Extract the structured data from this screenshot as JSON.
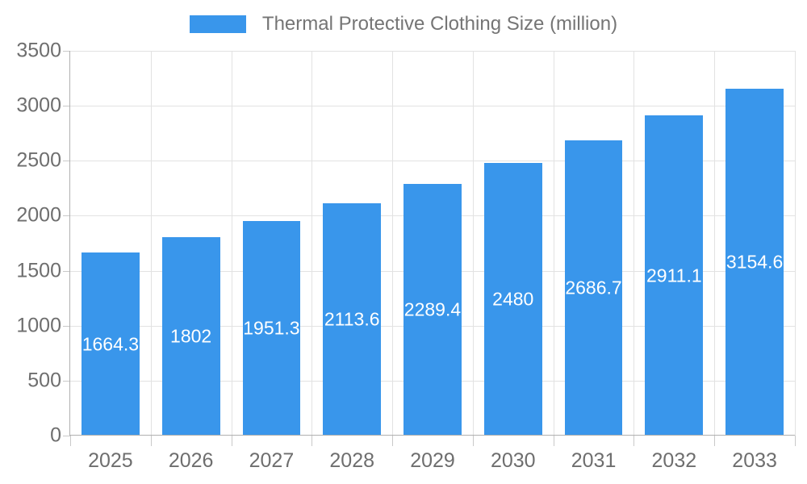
{
  "legend": {
    "label": "Thermal Protective Clothing Size (million)"
  },
  "colors": {
    "bar": "#3996EB",
    "legend_text": "#757575",
    "axis_text": "#6E6E6E",
    "value_text": "#FFFFFF",
    "grid": "#E2E2E2",
    "background": "#FFFFFF"
  },
  "chart_data": {
    "type": "bar",
    "title": "Thermal Protective Clothing Size (million)",
    "categories": [
      "2025",
      "2026",
      "2027",
      "2028",
      "2029",
      "2030",
      "2031",
      "2032",
      "2033"
    ],
    "values": [
      1664.3,
      1802,
      1951.3,
      2113.6,
      2289.4,
      2480,
      2686.7,
      2911.1,
      3154.6
    ],
    "value_labels": [
      "1664.3",
      "1802",
      "1951.3",
      "2113.6",
      "2289.4",
      "2480",
      "2686.7",
      "2911.1",
      "3154.6"
    ],
    "xlabel": "",
    "ylabel": "",
    "ylim": [
      0,
      3500
    ],
    "yticks": [
      0,
      500,
      1000,
      1500,
      2000,
      2500,
      3000,
      3500
    ],
    "grid": true,
    "legend_position": "top",
    "value_label_position": "center-of-bar"
  }
}
